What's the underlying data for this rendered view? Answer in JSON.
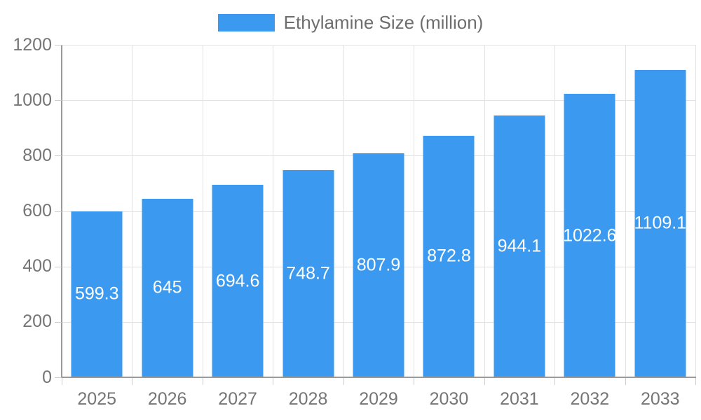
{
  "legend": {
    "series_label": "Ethylamine Size (million)"
  },
  "chart_data": {
    "type": "bar",
    "title": "",
    "xlabel": "",
    "ylabel": "",
    "series_name": "Ethylamine Size (million)",
    "categories": [
      "2025",
      "2026",
      "2027",
      "2028",
      "2029",
      "2030",
      "2031",
      "2032",
      "2033"
    ],
    "values": [
      599.3,
      645,
      694.6,
      748.7,
      807.9,
      872.8,
      944.1,
      1022.6,
      1109.1
    ],
    "value_labels": [
      "599.3",
      "645",
      "694.6",
      "748.7",
      "807.9",
      "872.8",
      "944.1",
      "1022.6",
      "1109.1"
    ],
    "ylim": [
      0,
      1200
    ],
    "yticks": [
      0,
      200,
      400,
      600,
      800,
      1000,
      1200
    ],
    "grid": true,
    "legend_position": "top"
  },
  "colors": {
    "bar": "#3b9aef",
    "grid": "#e2e2e2",
    "axis_line": "#9b9b9b",
    "tick": "#cccccc",
    "axis_text": "#757575",
    "legend_text": "#6e6e6e",
    "bar_label_text": "#ffffff",
    "background": "#ffffff"
  }
}
